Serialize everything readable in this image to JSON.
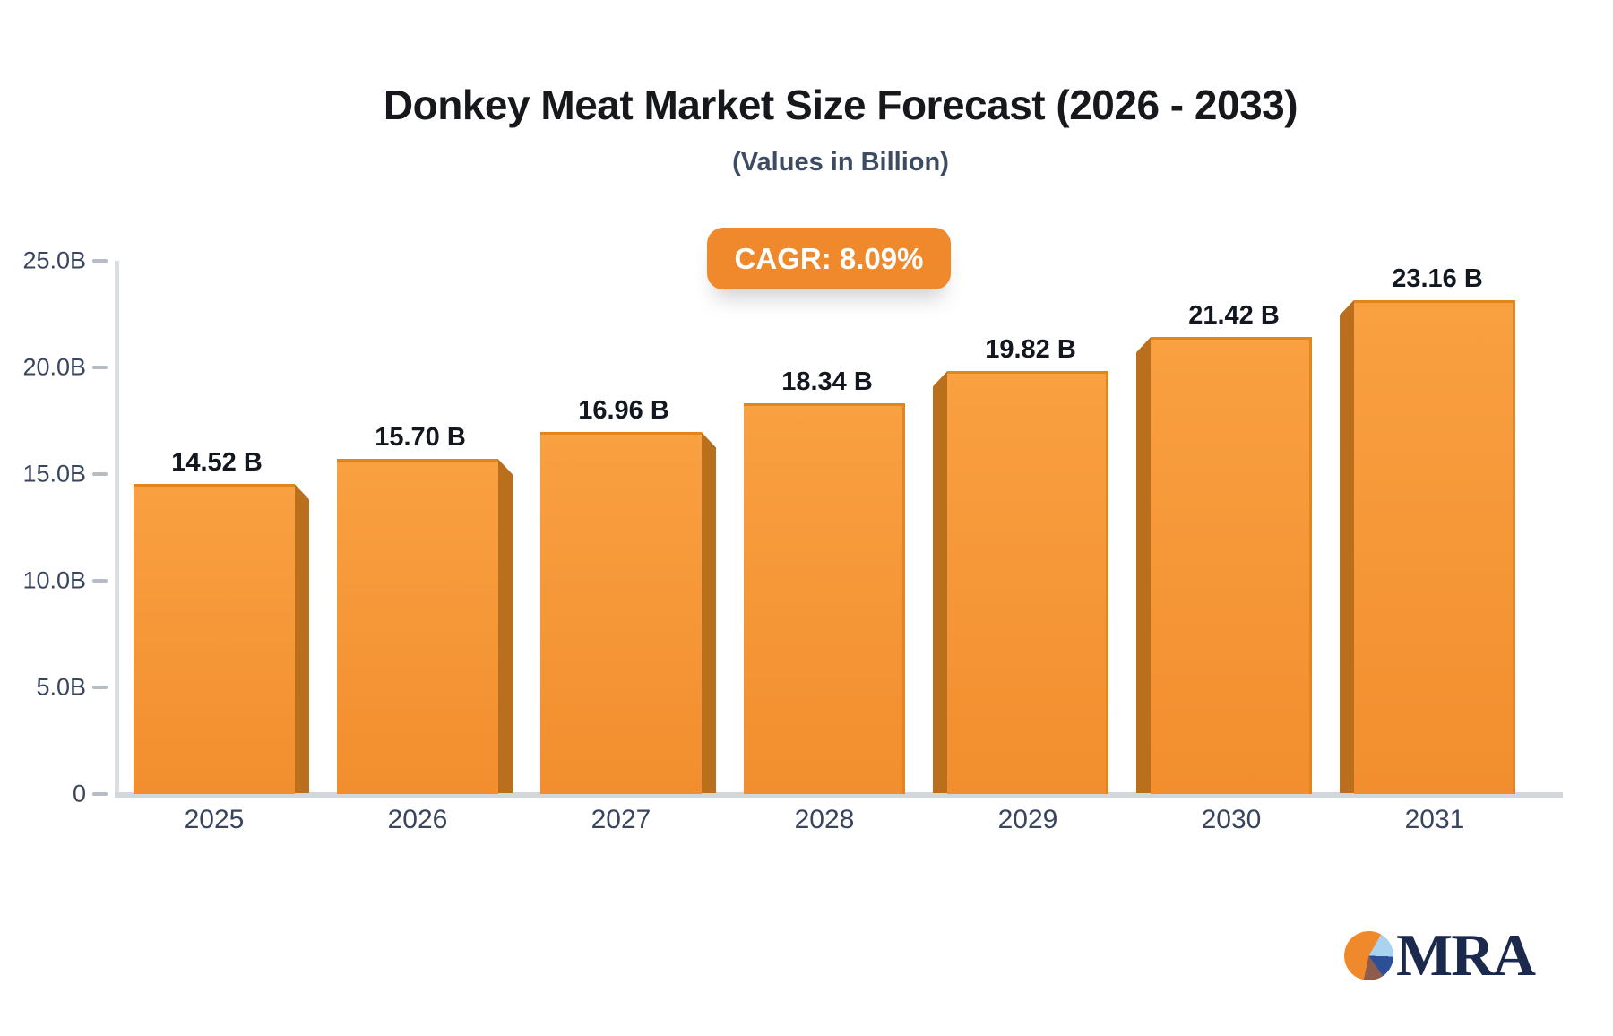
{
  "page": {
    "background": "#FFFFFF"
  },
  "header": {
    "title": "Donkey Meat Market Size Forecast (2026 - 2033)",
    "subtitle": "(Values in Billion)"
  },
  "cagr_badge": {
    "label": "CAGR: 8.09%",
    "background": "#F0882C",
    "text_color": "#FFFFFF"
  },
  "chart_data": {
    "type": "bar",
    "title": "Donkey Meat Market Size Forecast (2026 - 2033)",
    "subtitle": "(Values in Billion)",
    "annotation": "CAGR: 8.09%",
    "categories": [
      "2025",
      "2026",
      "2027",
      "2028",
      "2029",
      "2030",
      "2031"
    ],
    "values": [
      14.52,
      15.7,
      16.96,
      18.34,
      19.82,
      21.42,
      23.16
    ],
    "value_labels": [
      "14.52 B",
      "15.70 B",
      "16.96 B",
      "18.34 B",
      "19.82 B",
      "21.42 B",
      "23.16 B"
    ],
    "xlabel": "",
    "ylabel": "",
    "ylim": [
      0,
      25
    ],
    "y_ticks": [
      {
        "value": 0,
        "label": "0"
      },
      {
        "value": 5,
        "label": "5.0B"
      },
      {
        "value": 10,
        "label": "10.0B"
      },
      {
        "value": 15,
        "label": "15.0B"
      },
      {
        "value": 20,
        "label": "20.0B"
      },
      {
        "value": 25,
        "label": "25.0B"
      }
    ],
    "grid": false,
    "legend": "none",
    "bar_style": {
      "face_color_top": "#F9A041",
      "face_color_bottom": "#F28E2E",
      "side_color": "#B96F1C",
      "top_edge_color": "#E2861C"
    },
    "axis_color": "#DBDEE3",
    "tick_color": "#B6BCC7",
    "tick_label_color": "#39455E",
    "value_label_color": "#131720"
  },
  "logo": {
    "text": "MRA",
    "text_color": "#1B2A4C",
    "pie_colors": {
      "orange": "#F0882C",
      "light_blue": "#A9D3EE",
      "navy": "#2D4F97",
      "brown": "#8D5C4B"
    }
  }
}
